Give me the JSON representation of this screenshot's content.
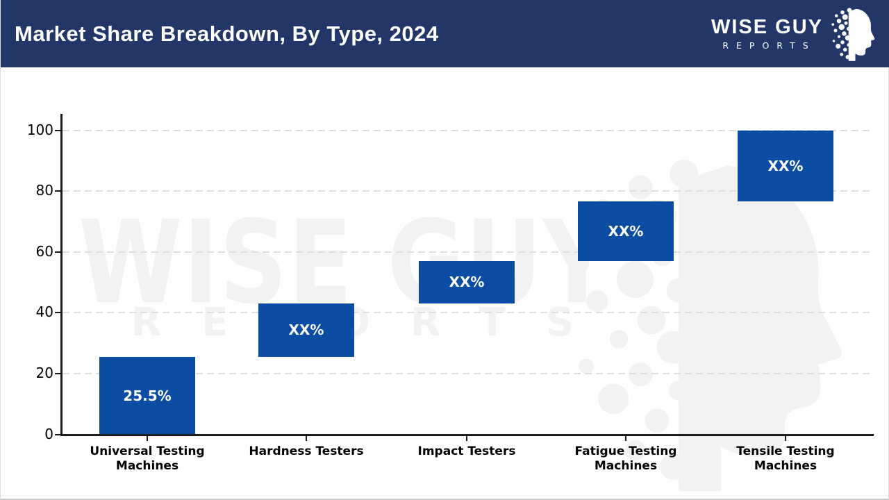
{
  "header": {
    "title": "Market Share Breakdown, By Type, 2024",
    "logo": {
      "line1": "WISE GUY",
      "line2": "REPORTS"
    }
  },
  "watermark": {
    "line1": "WISE GUY",
    "line2": "REPORTS"
  },
  "colors": {
    "header_bg": "#223768",
    "bar": "#0b4da2",
    "bar_label": "#ffffff",
    "grid": "#dcdcdc",
    "axis": "#1a1a1a",
    "watermark": "#f2f2f2"
  },
  "chart_data": {
    "type": "bar",
    "subtype": "waterfall",
    "title": "Market Share Breakdown, By Type, 2024",
    "xlabel": "",
    "ylabel": "",
    "categories": [
      "Universal Testing Machines",
      "Hardness Testers",
      "Impact Testers",
      "Fatigue Testing Machines",
      "Tensile Testing Machines"
    ],
    "segments": [
      {
        "label": "25.5%",
        "start": 0,
        "end": 25.5
      },
      {
        "label": "XX%",
        "start": 25.5,
        "end": 43
      },
      {
        "label": "XX%",
        "start": 43,
        "end": 57
      },
      {
        "label": "XX%",
        "start": 57,
        "end": 76.5
      },
      {
        "label": "XX%",
        "start": 76.5,
        "end": 100
      }
    ],
    "yticks": [
      0,
      20,
      40,
      60,
      80,
      100
    ],
    "ylim": [
      0,
      105
    ],
    "grid": "horizontal-dashed",
    "legend": "none"
  }
}
